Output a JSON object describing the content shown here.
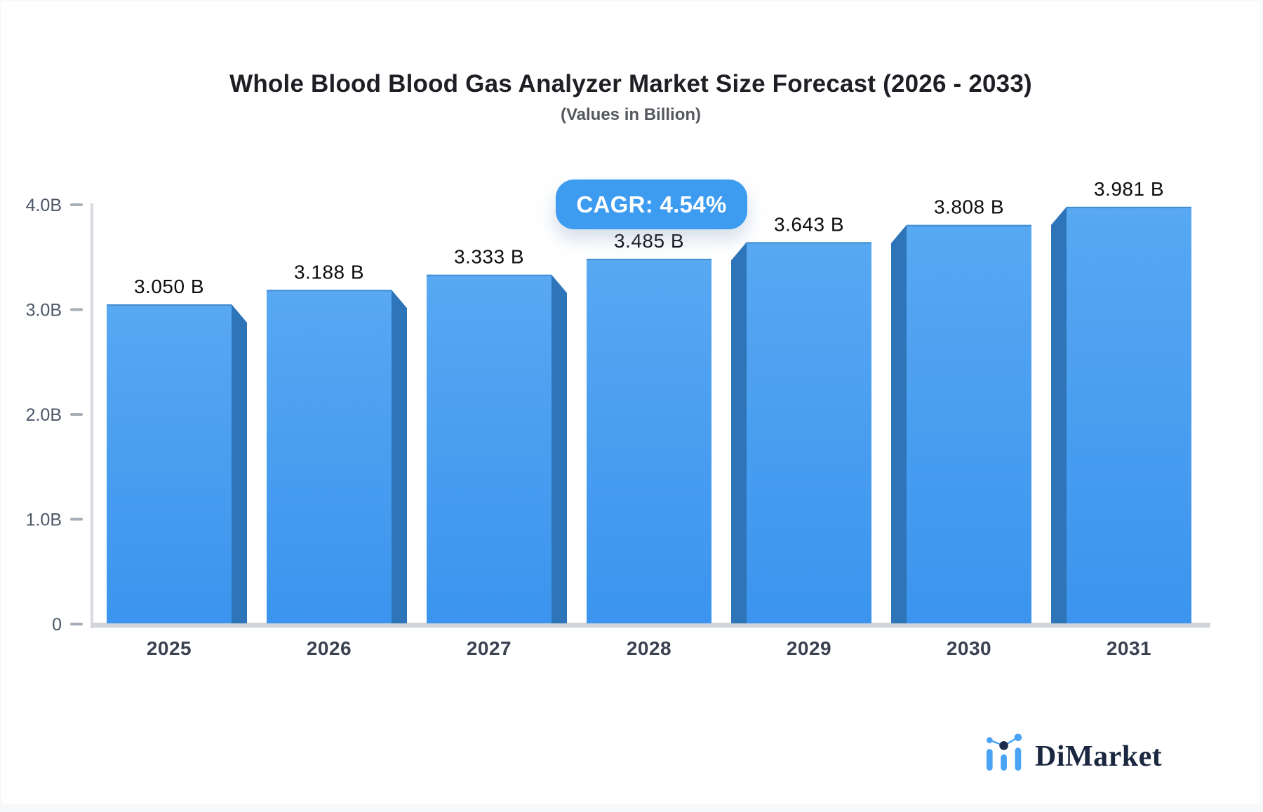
{
  "title": "Whole Blood Blood Gas Analyzer Market Size Forecast (2026 - 2033)",
  "subtitle": "(Values in Billion)",
  "cagr_badge": "CAGR: 4.54%",
  "brand": {
    "name": "DiMarket"
  },
  "colors": {
    "bar_face_top": "#58a8f2",
    "bar_face_bottom": "#3b94ee",
    "bar_side": "#2d74b8",
    "bar_top_edge": "#3f87cc",
    "badge_bg": "#3d9cf0",
    "badge_text": "#ffffff",
    "axis_line": "#d6d9de",
    "baseline": "#d2d5da",
    "tick_dash": "#a7aeb9",
    "tick_label": "#4c5668",
    "value_label": "#0c0d10",
    "x_label": "#3a4252",
    "title": "#1d1f24",
    "subtitle": "#55585f",
    "logo_blue": "#4aa3f5",
    "logo_navy": "#1e2d4d",
    "page_bg": "#f7f8fa",
    "card_bg": "#ffffff"
  },
  "chart_data": {
    "type": "bar",
    "title": "Whole Blood Blood Gas Analyzer Market Size Forecast (2026 - 2033)",
    "subtitle": "(Values in Billion)",
    "categories": [
      "2025",
      "2026",
      "2027",
      "2028",
      "2029",
      "2030",
      "2031"
    ],
    "values": [
      3.05,
      3.188,
      3.333,
      3.485,
      3.643,
      3.808,
      3.981
    ],
    "value_labels": [
      "3.050 B",
      "3.188 B",
      "3.333 B",
      "3.485 B",
      "3.643 B",
      "3.808 B",
      "3.981 B"
    ],
    "ytick_values": [
      0,
      1,
      2,
      3,
      4
    ],
    "ytick_labels": [
      "0",
      "1.0B",
      "2.0B",
      "3.0B",
      "4.0B"
    ],
    "ylim": [
      0,
      4.0
    ],
    "xlabel": "",
    "ylabel": "",
    "grid": false,
    "legend": "none",
    "annotation": "CAGR: 4.54%",
    "bar_style": "3d-beveled, side facet faces away from center bar"
  }
}
